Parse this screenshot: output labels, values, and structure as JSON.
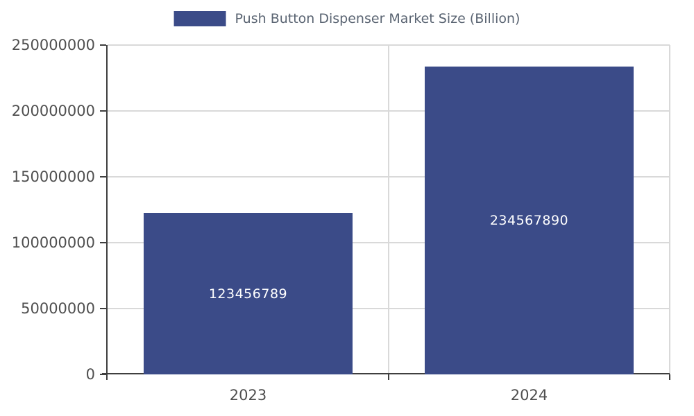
{
  "legend": {
    "label": "Push Button Dispenser Market Size (Billion)"
  },
  "colors": {
    "bar": "#3b4b88",
    "grid": "#d9d9d9",
    "axis": "#3f3f3f",
    "tick_text": "#4f4f4f",
    "legend_text": "#5a6472",
    "bar_label_text": "#ffffff"
  },
  "chart_data": {
    "type": "bar",
    "title": "Push Button Dispenser Market Size (Billion)",
    "categories": [
      "2023",
      "2024"
    ],
    "values": [
      123456789,
      234567890
    ],
    "data_labels": [
      "123456789",
      "234567890"
    ],
    "xlabel": "",
    "ylabel": "",
    "ylim": [
      0,
      250000000
    ],
    "yticks": [
      0,
      50000000,
      100000000,
      150000000,
      200000000,
      250000000
    ],
    "ytick_labels": [
      "0",
      "50000000",
      "100000000",
      "150000000",
      "200000000",
      "250000000"
    ],
    "grid": true,
    "legend_position": "top"
  }
}
